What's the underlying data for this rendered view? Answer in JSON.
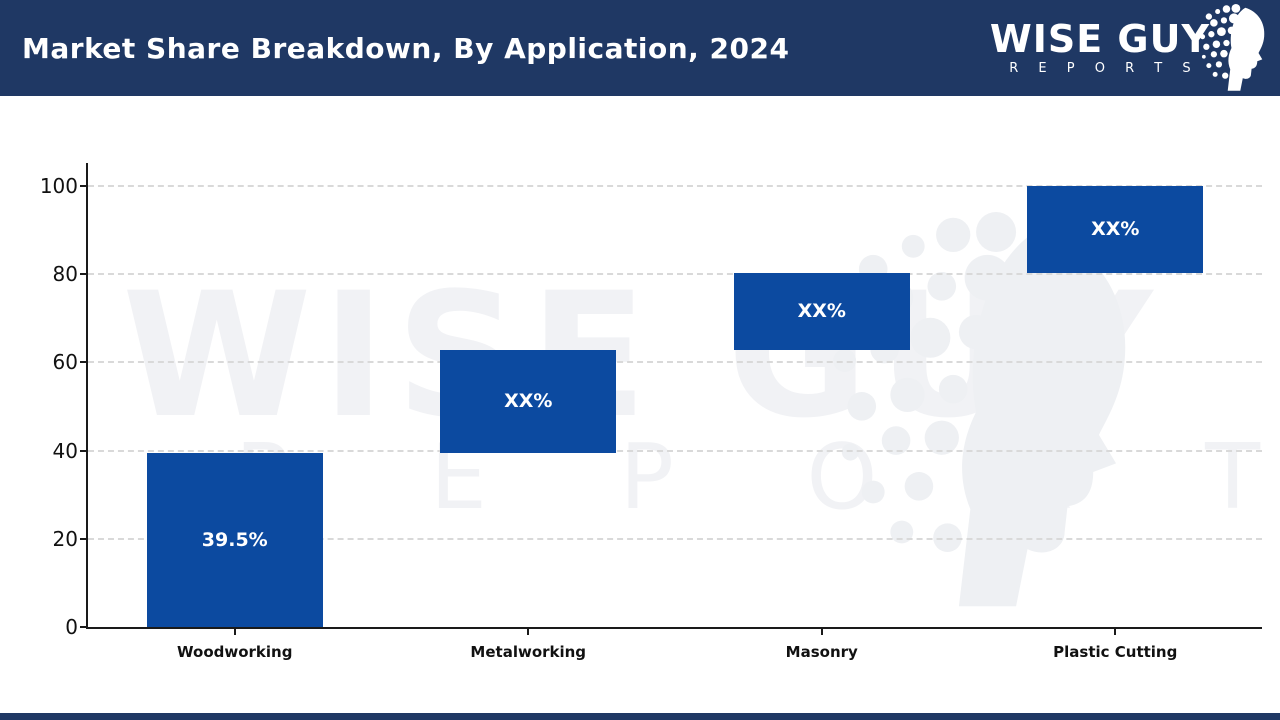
{
  "header": {
    "title": "Market Share Breakdown, By Application, 2024",
    "logo": {
      "line1": "WISE GUY",
      "line2": "R E P O R T S"
    }
  },
  "watermark": {
    "line1": "WISE GUY",
    "line2": "R E P O R T S"
  },
  "colors": {
    "header_bg": "#1f3864",
    "footer_bg": "#1f3864",
    "bar": "#0c4aa0",
    "bar_label": "#ffffff",
    "grid": "#d9d9d9",
    "axis": "#1a1a1a",
    "watermark": "#f1f2f5"
  },
  "chart_data": {
    "type": "bar",
    "subtype": "waterfall",
    "title": "Market Share Breakdown, By Application, 2024",
    "xlabel": "",
    "ylabel": "",
    "ylim": [
      0,
      105
    ],
    "yticks": [
      0,
      20,
      40,
      60,
      80,
      100
    ],
    "grid": "horizontal-dashed",
    "legend": "none",
    "categories": [
      "Woodworking",
      "Metalworking",
      "Masonry",
      "Plastic Cutting"
    ],
    "bars": [
      {
        "category": "Woodworking",
        "start": 0,
        "end": 39.5,
        "value": 39.5,
        "label": "39.5%"
      },
      {
        "category": "Metalworking",
        "start": 39.5,
        "end": 62.8,
        "value": 23.3,
        "label": "XX%"
      },
      {
        "category": "Masonry",
        "start": 62.8,
        "end": 80.3,
        "value": 17.5,
        "label": "XX%"
      },
      {
        "category": "Plastic Cutting",
        "start": 80.3,
        "end": 100,
        "value": 19.7,
        "label": "XX%"
      }
    ]
  }
}
